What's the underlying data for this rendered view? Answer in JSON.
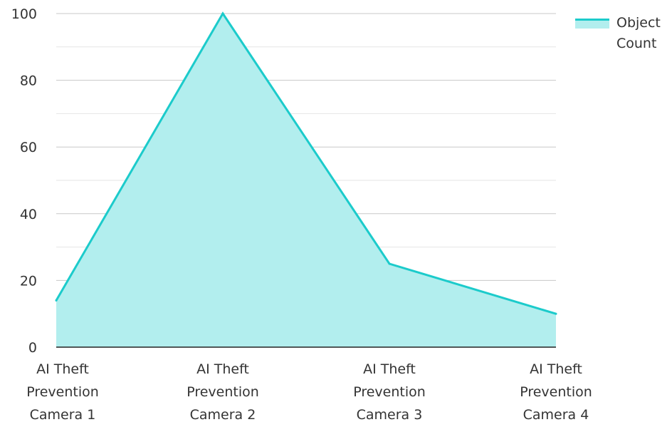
{
  "chart_data": {
    "type": "area",
    "categories": [
      "AI Theft Prevention Camera 1",
      "AI Theft Prevention Camera 2",
      "AI Theft Prevention Camera 3",
      "AI Theft Prevention Camera 4"
    ],
    "category_lines": [
      [
        "AI Theft",
        "Prevention",
        "Camera 1"
      ],
      [
        "AI Theft",
        "Prevention",
        "Camera 2"
      ],
      [
        "AI Theft",
        "Prevention",
        "Camera 3"
      ],
      [
        "AI Theft",
        "Prevention",
        "Camera 4"
      ]
    ],
    "series": [
      {
        "name": "Object Count",
        "values": [
          14,
          100,
          25,
          10
        ]
      }
    ],
    "ylim": [
      0,
      100
    ],
    "yticks": [
      0,
      20,
      40,
      60,
      80,
      100
    ],
    "grid": true,
    "legend_position": "top-right",
    "colors": {
      "line": "#1ccbcb",
      "fill": "#b2eeee",
      "grid": "#c8c8c8",
      "minor_grid": "#e6e6e6",
      "axis": "#222222"
    }
  }
}
